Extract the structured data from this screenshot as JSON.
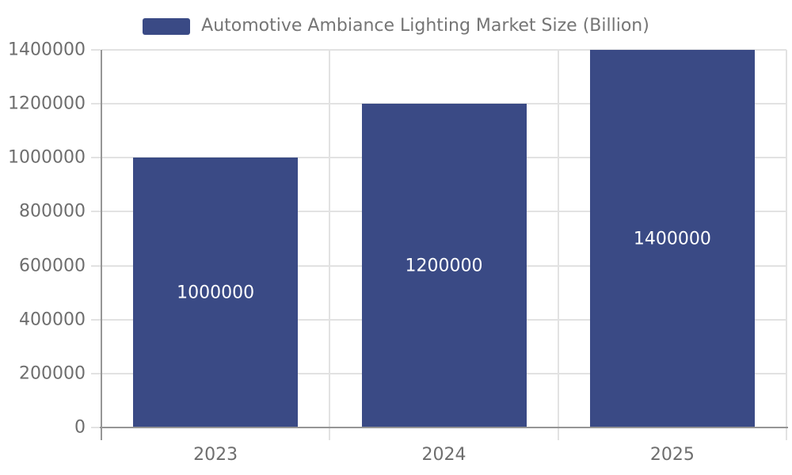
{
  "legend": {
    "label": "Automotive Ambiance Lighting Market Size (Billion)"
  },
  "chart_data": {
    "type": "bar",
    "title": "Automotive Ambiance Lighting Market Size (Billion)",
    "categories": [
      "2023",
      "2024",
      "2025"
    ],
    "values": [
      1000000,
      1200000,
      1400000
    ],
    "data_labels": [
      "1000000",
      "1200000",
      "1400000"
    ],
    "ylim": [
      0,
      1400000
    ],
    "ytick_step": 200000,
    "yticks": [
      "0",
      "200000",
      "400000",
      "600000",
      "800000",
      "1000000",
      "1200000",
      "1400000"
    ],
    "xlabel": "",
    "ylabel": "",
    "grid": true,
    "legend_position": "top",
    "colors": {
      "bar": "#3A4A85",
      "grid_line": "#E2E2E2",
      "axis_line": "#969696",
      "tick_text": "#6E6E6E",
      "legend_text": "#757575",
      "bar_label_text": "#FFFFFF",
      "background": "#FFFFFF"
    }
  }
}
